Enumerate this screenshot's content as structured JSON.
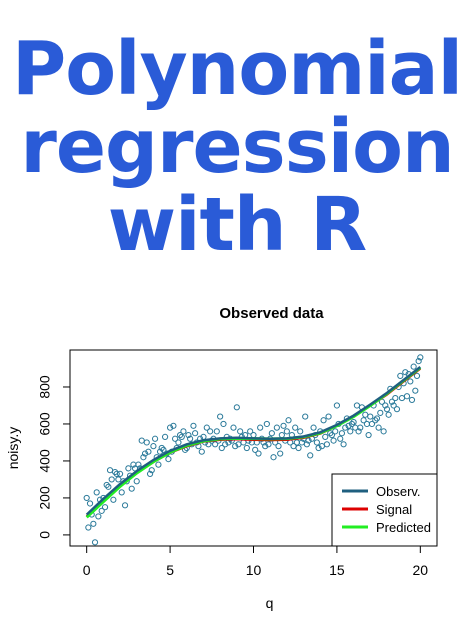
{
  "headline": {
    "line1": "Polynomial",
    "line2": "regression",
    "line3": "with R",
    "color": "#2a5bd7"
  },
  "chart_data": {
    "type": "scatter",
    "title": "Observed data",
    "xlabel": "q",
    "ylabel": "noisy.y",
    "xlim": [
      -1,
      21
    ],
    "ylim": [
      -60,
      1000
    ],
    "xticks": [
      0,
      5,
      10,
      15,
      20
    ],
    "yticks": [
      0,
      200,
      400,
      600,
      800
    ],
    "grid": false,
    "legend": {
      "position": "bottom-right",
      "entries": [
        {
          "label": "Observ.",
          "color": "#1f5f7f"
        },
        {
          "label": "Signal",
          "color": "#dd0000"
        },
        {
          "label": "Predicted",
          "color": "#22ee22"
        }
      ]
    },
    "points": {
      "color": "#2b7a9a",
      "x": [
        0.0,
        0.1,
        0.2,
        0.3,
        0.4,
        0.5,
        0.6,
        0.7,
        0.8,
        0.9,
        1.0,
        1.1,
        1.2,
        1.3,
        1.4,
        1.5,
        1.6,
        1.7,
        1.8,
        1.9,
        2.0,
        2.1,
        2.2,
        2.3,
        2.4,
        2.5,
        2.6,
        2.7,
        2.8,
        2.9,
        3.0,
        3.1,
        3.2,
        3.3,
        3.4,
        3.5,
        3.6,
        3.7,
        3.8,
        3.9,
        4.0,
        4.1,
        4.2,
        4.3,
        4.4,
        4.5,
        4.6,
        4.7,
        4.8,
        4.9,
        5.0,
        5.1,
        5.2,
        5.3,
        5.4,
        5.5,
        5.6,
        5.7,
        5.8,
        5.9,
        6.0,
        6.1,
        6.2,
        6.3,
        6.4,
        6.5,
        6.6,
        6.7,
        6.8,
        6.9,
        7.0,
        7.1,
        7.2,
        7.3,
        7.4,
        7.5,
        7.6,
        7.7,
        7.8,
        7.9,
        8.0,
        8.1,
        8.2,
        8.3,
        8.4,
        8.5,
        8.6,
        8.7,
        8.8,
        8.9,
        9.0,
        9.1,
        9.2,
        9.3,
        9.4,
        9.5,
        9.6,
        9.7,
        9.8,
        9.9,
        10.0,
        10.1,
        10.2,
        10.3,
        10.4,
        10.5,
        10.6,
        10.7,
        10.8,
        10.9,
        11.0,
        11.1,
        11.2,
        11.3,
        11.4,
        11.5,
        11.6,
        11.7,
        11.8,
        11.9,
        12.0,
        12.1,
        12.2,
        12.3,
        12.4,
        12.5,
        12.6,
        12.7,
        12.8,
        12.9,
        13.0,
        13.1,
        13.2,
        13.3,
        13.4,
        13.5,
        13.6,
        13.7,
        13.8,
        13.9,
        14.0,
        14.1,
        14.2,
        14.3,
        14.4,
        14.5,
        14.6,
        14.7,
        14.8,
        14.9,
        15.0,
        15.1,
        15.2,
        15.3,
        15.4,
        15.5,
        15.6,
        15.7,
        15.8,
        15.9,
        16.0,
        16.1,
        16.2,
        16.3,
        16.4,
        16.5,
        16.6,
        16.7,
        16.8,
        16.9,
        17.0,
        17.1,
        17.2,
        17.3,
        17.4,
        17.5,
        17.6,
        17.7,
        17.8,
        17.9,
        18.0,
        18.1,
        18.2,
        18.3,
        18.4,
        18.5,
        18.6,
        18.7,
        18.8,
        18.9,
        19.0,
        19.1,
        19.2,
        19.3,
        19.4,
        19.5,
        19.6,
        19.7,
        19.8,
        19.9,
        20.0
      ],
      "y": [
        200,
        40,
        170,
        110,
        60,
        -40,
        230,
        100,
        190,
        130,
        200,
        150,
        270,
        260,
        350,
        300,
        190,
        340,
        330,
        300,
        330,
        230,
        290,
        160,
        290,
        360,
        320,
        250,
        380,
        360,
        290,
        380,
        360,
        510,
        420,
        440,
        500,
        450,
        330,
        350,
        480,
        520,
        420,
        380,
        450,
        470,
        460,
        530,
        440,
        410,
        580,
        450,
        590,
        520,
        470,
        500,
        540,
        530,
        560,
        460,
        470,
        540,
        520,
        490,
        590,
        550,
        500,
        480,
        520,
        450,
        530,
        500,
        580,
        490,
        560,
        510,
        520,
        490,
        560,
        510,
        640,
        470,
        600,
        490,
        530,
        500,
        520,
        510,
        580,
        480,
        690,
        490,
        560,
        530,
        500,
        540,
        470,
        510,
        560,
        500,
        540,
        460,
        500,
        440,
        580,
        520,
        500,
        480,
        600,
        490,
        520,
        550,
        420,
        500,
        580,
        480,
        440,
        540,
        590,
        510,
        560,
        620,
        500,
        540,
        480,
        580,
        500,
        470,
        560,
        500,
        520,
        640,
        490,
        510,
        430,
        520,
        580,
        540,
        500,
        470,
        560,
        480,
        620,
        530,
        490,
        640,
        550,
        540,
        510,
        560,
        700,
        600,
        520,
        550,
        490,
        580,
        630,
        590,
        560,
        600,
        610,
        580,
        700,
        560,
        580,
        690,
        620,
        650,
        600,
        540,
        640,
        600,
        700,
        620,
        630,
        580,
        660,
        720,
        560,
        700,
        680,
        650,
        790,
        720,
        700,
        740,
        680,
        800,
        860,
        740,
        820,
        880,
        750,
        870,
        830,
        730,
        910,
        780,
        860,
        940,
        960
      ],
      "note": ""
    },
    "lines": [
      {
        "name": "Signal",
        "color": "#dd0000",
        "x": [
          0,
          1,
          2,
          3,
          4,
          5,
          6,
          7,
          8,
          9,
          10,
          11,
          12,
          13,
          14,
          15,
          16,
          17,
          18,
          19,
          20
        ],
        "y": [
          100,
          185,
          265,
          335,
          395,
          445,
          480,
          505,
          515,
          518,
          515,
          513,
          515,
          525,
          548,
          590,
          640,
          700,
          760,
          830,
          900
        ]
      },
      {
        "name": "Predicted",
        "color": "#22ee22",
        "x": [
          0,
          1,
          2,
          3,
          4,
          5,
          6,
          7,
          8,
          9,
          10,
          11,
          12,
          13,
          14,
          15,
          16,
          17,
          18,
          19,
          20
        ],
        "y": [
          95,
          180,
          262,
          334,
          396,
          447,
          484,
          508,
          519,
          522,
          521,
          519,
          521,
          530,
          551,
          590,
          640,
          700,
          765,
          835,
          905
        ]
      },
      {
        "name": "Observ.",
        "color": "#1f5f7f",
        "x": [
          0,
          1,
          2,
          3,
          4,
          5,
          6,
          7,
          8,
          9,
          10,
          11,
          12,
          13,
          14,
          15,
          16,
          17,
          18,
          19,
          20
        ],
        "y": [
          110,
          195,
          275,
          345,
          405,
          455,
          490,
          512,
          522,
          525,
          522,
          520,
          522,
          532,
          555,
          595,
          645,
          705,
          768,
          838,
          908
        ]
      }
    ]
  }
}
